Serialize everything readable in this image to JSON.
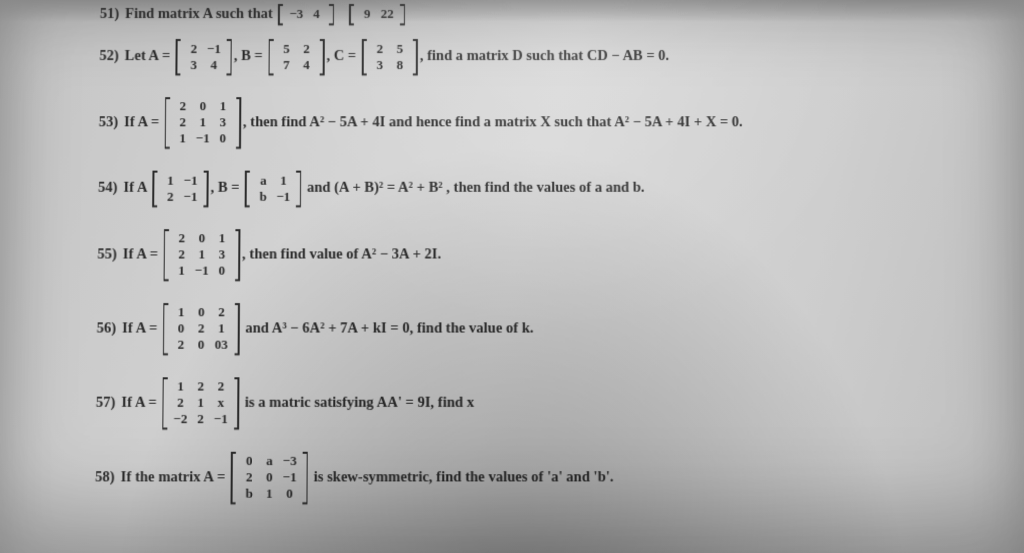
{
  "page": {
    "background": "#cfcfcf",
    "text_color": "#2b2b2b",
    "font_family": "Georgia, 'Times New Roman', serif",
    "font_size_pt": 11,
    "font_weight": "bold"
  },
  "problems": [
    {
      "num": "51)",
      "pre": "Find matrix A such that ",
      "matrices": [
        {
          "rows": [
            [
              "−3",
              "4"
            ]
          ]
        },
        {
          "rows": [
            [
              "9",
              "22"
            ]
          ]
        }
      ],
      "post": ""
    },
    {
      "num": "52)",
      "pre": "Let A = ",
      "m1": {
        "rows": [
          [
            "2",
            "−1"
          ],
          [
            "3",
            "4"
          ]
        ]
      },
      "t1": ", B = ",
      "m2": {
        "rows": [
          [
            "5",
            "2"
          ],
          [
            "7",
            "4"
          ]
        ]
      },
      "t2": ", C = ",
      "m3": {
        "rows": [
          [
            "2",
            "5"
          ],
          [
            "3",
            "8"
          ]
        ]
      },
      "post": ", find a matrix D such that CD − AB = 0."
    },
    {
      "num": "53)",
      "pre": "If A = ",
      "m1": {
        "rows": [
          [
            "2",
            "0",
            "1"
          ],
          [
            "2",
            "1",
            "3"
          ],
          [
            "1",
            "−1",
            "0"
          ]
        ]
      },
      "post": ", then find A² − 5A + 4I and hence find a matrix X such that A² − 5A + 4I + X = 0."
    },
    {
      "num": "54)",
      "pre": "If A ",
      "m1": {
        "rows": [
          [
            "1",
            "−1"
          ],
          [
            "2",
            "−1"
          ]
        ]
      },
      "t1": ", B = ",
      "m2": {
        "rows": [
          [
            "a",
            "1"
          ],
          [
            "b",
            "−1"
          ]
        ]
      },
      "post": " and (A + B)² = A² + B² , then find the values of a and b."
    },
    {
      "num": "55)",
      "pre": "If A = ",
      "m1": {
        "rows": [
          [
            "2",
            "0",
            "1"
          ],
          [
            "2",
            "1",
            "3"
          ],
          [
            "1",
            "−1",
            "0"
          ]
        ]
      },
      "post": ", then find value of A² − 3A + 2I."
    },
    {
      "num": "56)",
      "pre": "If A = ",
      "m1": {
        "rows": [
          [
            "1",
            "0",
            "2"
          ],
          [
            "0",
            "2",
            "1"
          ],
          [
            "2",
            "0",
            "03"
          ]
        ]
      },
      "post": " and A³ − 6A² + 7A + kI = 0, find the value of k."
    },
    {
      "num": "57)",
      "pre": "If A = ",
      "m1": {
        "rows": [
          [
            "1",
            "2",
            "2"
          ],
          [
            "2",
            "1",
            "x"
          ],
          [
            "−2",
            "2",
            "−1"
          ]
        ]
      },
      "post": " is a matric satisfying AA' = 9I, find x"
    },
    {
      "num": "58)",
      "pre": "If the matrix A = ",
      "m1": {
        "rows": [
          [
            "0",
            "a",
            "−3"
          ],
          [
            "2",
            "0",
            "−1"
          ],
          [
            "b",
            "1",
            "0"
          ]
        ]
      },
      "post": " is skew-symmetric, find the values of 'a' and 'b'."
    }
  ]
}
